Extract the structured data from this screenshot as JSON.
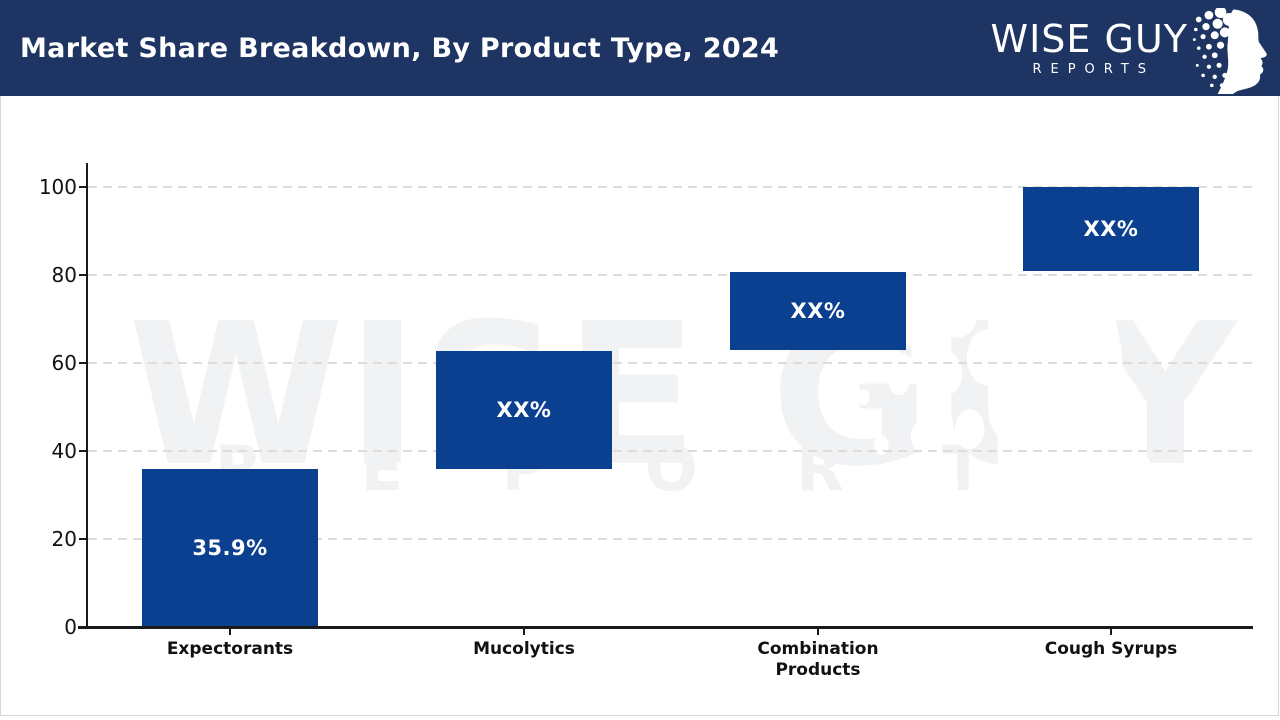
{
  "header": {
    "title": "Market Share Breakdown, By Product Type, 2024",
    "brand_line1": "WISE GUY",
    "brand_line2": "REPORTS"
  },
  "watermark": {
    "line1": "WISE GUY",
    "line2": "REPORTS"
  },
  "colors": {
    "header_bg": "#1e3462",
    "bar": "#0b4091",
    "bar_label": "#ffffff",
    "grid": "#dcdcdc",
    "axis": "#1a1a1a",
    "watermark": "#f1f2f4",
    "frame_border": "#d6d6d6"
  },
  "chart_data": {
    "type": "bar",
    "variant": "floating-range-bars (stacked cascade)",
    "title": "Market Share Breakdown, By Product Type, 2024",
    "categories": [
      "Expectorants",
      "Mucolytics",
      "Combination Products",
      "Cough Syrups"
    ],
    "segments": [
      {
        "category": "Expectorants",
        "start": 0,
        "end": 35.9,
        "label": "35.9%"
      },
      {
        "category": "Mucolytics",
        "start": 35.9,
        "end": 62.7,
        "label": "XX%"
      },
      {
        "category": "Combination Products",
        "start": 62.9,
        "end": 80.6,
        "label": "XX%"
      },
      {
        "category": "Cough Syrups",
        "start": 80.8,
        "end": 100,
        "label": "XX%"
      }
    ],
    "xlabel": "",
    "ylabel": "",
    "ylim": [
      0,
      100
    ],
    "yticks": [
      0,
      20,
      40,
      60,
      80,
      100
    ],
    "grid": "horizontal dashed",
    "legend": "none",
    "bar_color": "#0b4091",
    "value_label_color": "#ffffff"
  }
}
